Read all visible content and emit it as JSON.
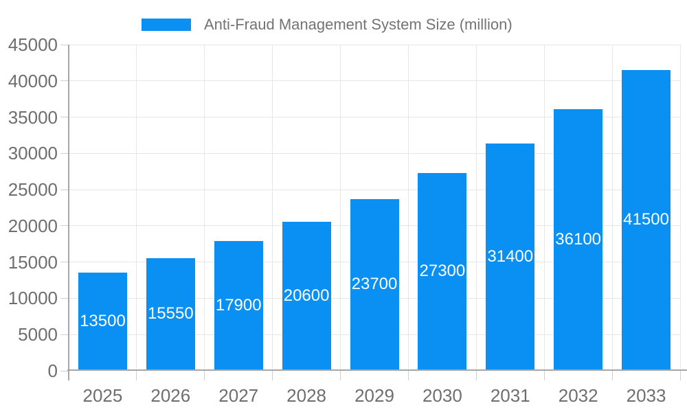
{
  "chart_data": {
    "type": "bar",
    "title": "Anti-Fraud Management System Size (million)",
    "legend": [
      "Anti-Fraud Management System Size (million)"
    ],
    "legend_position": "top",
    "categories": [
      "2025",
      "2026",
      "2027",
      "2028",
      "2029",
      "2030",
      "2031",
      "2032",
      "2033"
    ],
    "values": [
      13500,
      15550,
      17900,
      20600,
      23700,
      27300,
      31400,
      36100,
      41500
    ],
    "xlabel": "",
    "ylabel": "",
    "ylim": [
      0,
      45000
    ],
    "ytick_step": 5000,
    "yticks": [
      0,
      5000,
      10000,
      15000,
      20000,
      25000,
      30000,
      35000,
      40000,
      45000
    ],
    "grid": true,
    "colors": {
      "bar": "#0a8ff2",
      "bar_label": "#ffffff",
      "grid": "#e6e6e6",
      "axis_line": "#a6a6a6",
      "tick": "#cfcfcf",
      "axis_text": "#6e6e6e",
      "legend_text": "#737373"
    }
  }
}
